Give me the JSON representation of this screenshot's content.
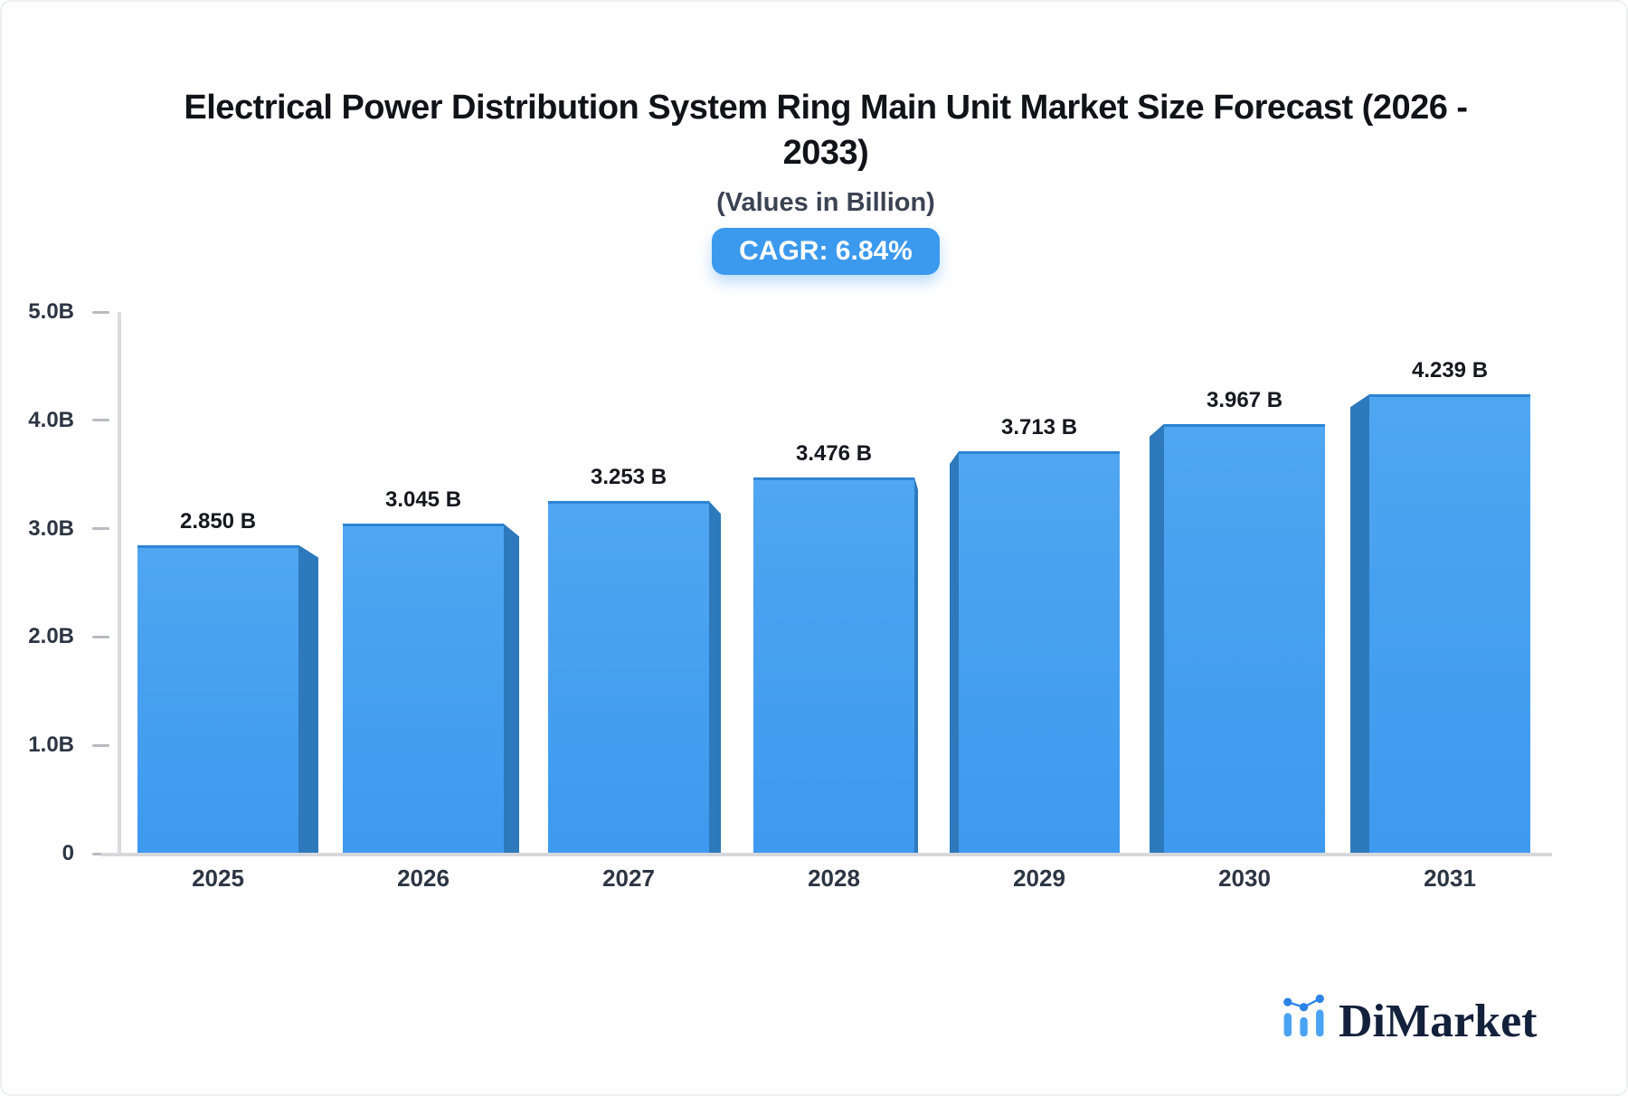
{
  "header": {
    "title_lines": [
      "Electrical Power Distribution System Ring Main Unit Market Size Forecast (2026 -",
      "2033)"
    ],
    "subtitle": "(Values in Billion)",
    "cagr_badge": "CAGR: 6.84%"
  },
  "chart_data": {
    "type": "bar",
    "title": "Electrical Power Distribution System Ring Main Unit Market Size Forecast (2026 - 2033)",
    "units": "Billion",
    "cagr_percent": 6.84,
    "categories": [
      "2025",
      "2026",
      "2027",
      "2028",
      "2029",
      "2030",
      "2031"
    ],
    "values": [
      2.85,
      3.045,
      3.253,
      3.476,
      3.713,
      3.967,
      4.239
    ],
    "value_labels": [
      "2.850 B",
      "3.045 B",
      "3.253 B",
      "3.476 B",
      "3.713 B",
      "3.967 B",
      "4.239 B"
    ],
    "y_ticks": [
      {
        "value": 5,
        "label": "5.0B"
      },
      {
        "value": 4,
        "label": "4.0B"
      },
      {
        "value": 3,
        "label": "3.0B"
      },
      {
        "value": 2,
        "label": "2.0B"
      },
      {
        "value": 1,
        "label": "1.0B"
      },
      {
        "value": 0,
        "label": "0"
      }
    ],
    "ylim": [
      0,
      5
    ],
    "grid": false,
    "legend": false,
    "bar_style": "3d-perspective"
  },
  "logo": {
    "brand": "DiMarket"
  },
  "colors": {
    "accent": "#3b99ee",
    "bar_face_top": "#50a6f1",
    "bar_face_bottom": "#3e9aef",
    "bar_side": "#2d79bc",
    "axis": "#d7d8db",
    "text_dark": "#2c3543",
    "logo_navy": "#14213c",
    "logo_blue": "#4aa3f3"
  }
}
